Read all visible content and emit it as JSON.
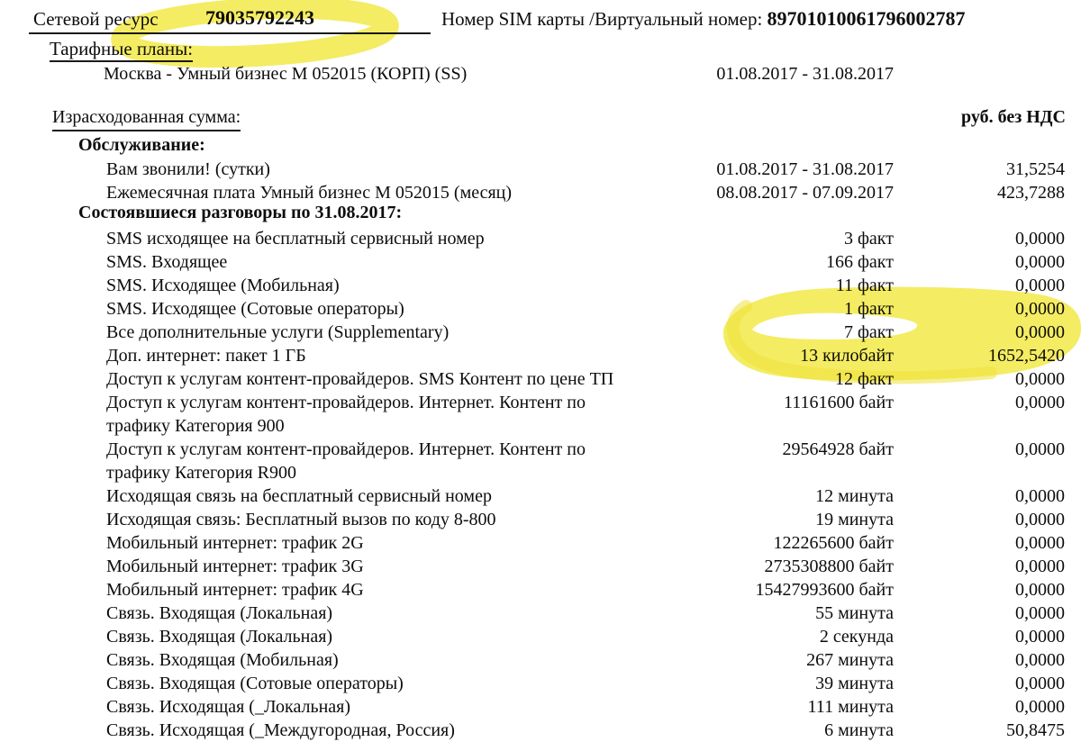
{
  "header": {
    "network_resource_label": "Сетевой ресурс",
    "network_resource_number": "79035792243",
    "sim_label": "Номер SIM карты /Виртуальный номер:",
    "sim_number": "89701010061796002787"
  },
  "tariff": {
    "section_label": "Тарифные планы:",
    "plan_name": "Москва - Умный бизнес М 052015 (КОРП) (SS)",
    "plan_period": "01.08.2017 - 31.08.2017"
  },
  "spent": {
    "section_label": "Израсходованная сумма:",
    "currency_label": "руб. без НДС",
    "service_section_label": "Обслуживание:",
    "services": [
      {
        "label": "Вам звонили! (сутки)",
        "period": "01.08.2017 - 31.08.2017",
        "amount": "31,5254"
      },
      {
        "label": "Ежемесячная плата Умный бизнес М 052015 (месяц)",
        "period": "08.08.2017 - 07.09.2017",
        "amount": "423,7288"
      }
    ],
    "calls_section_label": "Состоявшиеся разговоры по 31.08.2017:",
    "usage_rows": [
      {
        "label": "SMS исходящее на бесплатный сервисный номер",
        "quantity": "3 факт",
        "amount": "0,0000"
      },
      {
        "label": "SMS. Входящее",
        "quantity": "166 факт",
        "amount": "0,0000"
      },
      {
        "label": "SMS. Исходящее (Мобильная)",
        "quantity": "11 факт",
        "amount": "0,0000"
      },
      {
        "label": "SMS. Исходящее (Сотовые операторы)",
        "quantity": "1 факт",
        "amount": "0,0000",
        "highlighted": true
      },
      {
        "label": "Все дополнительные услуги (Supplementary)",
        "quantity": "7 факт",
        "amount": "0,0000",
        "highlighted": true
      },
      {
        "label": "Доп. интернет: пакет 1 ГБ",
        "quantity": "13 килобайт",
        "amount": "1652,5420",
        "highlighted": true
      },
      {
        "label": "Доступ к услугам контент-провайдеров. SMS Контент по цене ТП",
        "quantity": "12 факт",
        "amount": "0,0000",
        "highlighted": true
      },
      {
        "label": "Доступ к услугам контент-провайдеров. Интернет. Контент по",
        "label2": "трафику Категория 900",
        "quantity": "11161600 байт",
        "amount": "0,0000"
      },
      {
        "label": "Доступ к услугам контент-провайдеров. Интернет. Контент по",
        "label2": "трафику Категория R900",
        "quantity": "29564928 байт",
        "amount": "0,0000"
      },
      {
        "label": "Исходящая связь на бесплатный сервисный номер",
        "quantity": "12 минута",
        "amount": "0,0000"
      },
      {
        "label": "Исходящая связь: Бесплатный вызов по коду 8-800",
        "quantity": "19 минута",
        "amount": "0,0000"
      },
      {
        "label": "Мобильный интернет: трафик 2G",
        "quantity": "122265600 байт",
        "amount": "0,0000"
      },
      {
        "label": "Мобильный интернет: трафик 3G",
        "quantity": "2735308800 байт",
        "amount": "0,0000"
      },
      {
        "label": "Мобильный интернет: трафик 4G",
        "quantity": "15427993600 байт",
        "amount": "0,0000"
      },
      {
        "label": "Связь. Входящая (Локальная)",
        "quantity": "55 минута",
        "amount": "0,0000"
      },
      {
        "label": "Связь. Входящая (Локальная)",
        "quantity": "2 секунда",
        "amount": "0,0000"
      },
      {
        "label": "Связь. Входящая (Мобильная)",
        "quantity": "267 минута",
        "amount": "0,0000"
      },
      {
        "label": "Связь. Входящая (Сотовые операторы)",
        "quantity": "39 минута",
        "amount": "0,0000"
      },
      {
        "label": "Связь. Исходящая (_Локальная)",
        "quantity": "111 минута",
        "amount": "0,0000"
      },
      {
        "label": "Связь. Исходящая (_Междугородная, Россия)",
        "quantity": "6 минута",
        "amount": "50,8475"
      }
    ]
  },
  "annotations": {
    "highlighter_color": "#f1e73c",
    "highlighted_values": [
      "79035792243",
      "1 факт",
      "7 факт",
      "13 килобайт",
      "1652,5420",
      "12 факт"
    ]
  }
}
